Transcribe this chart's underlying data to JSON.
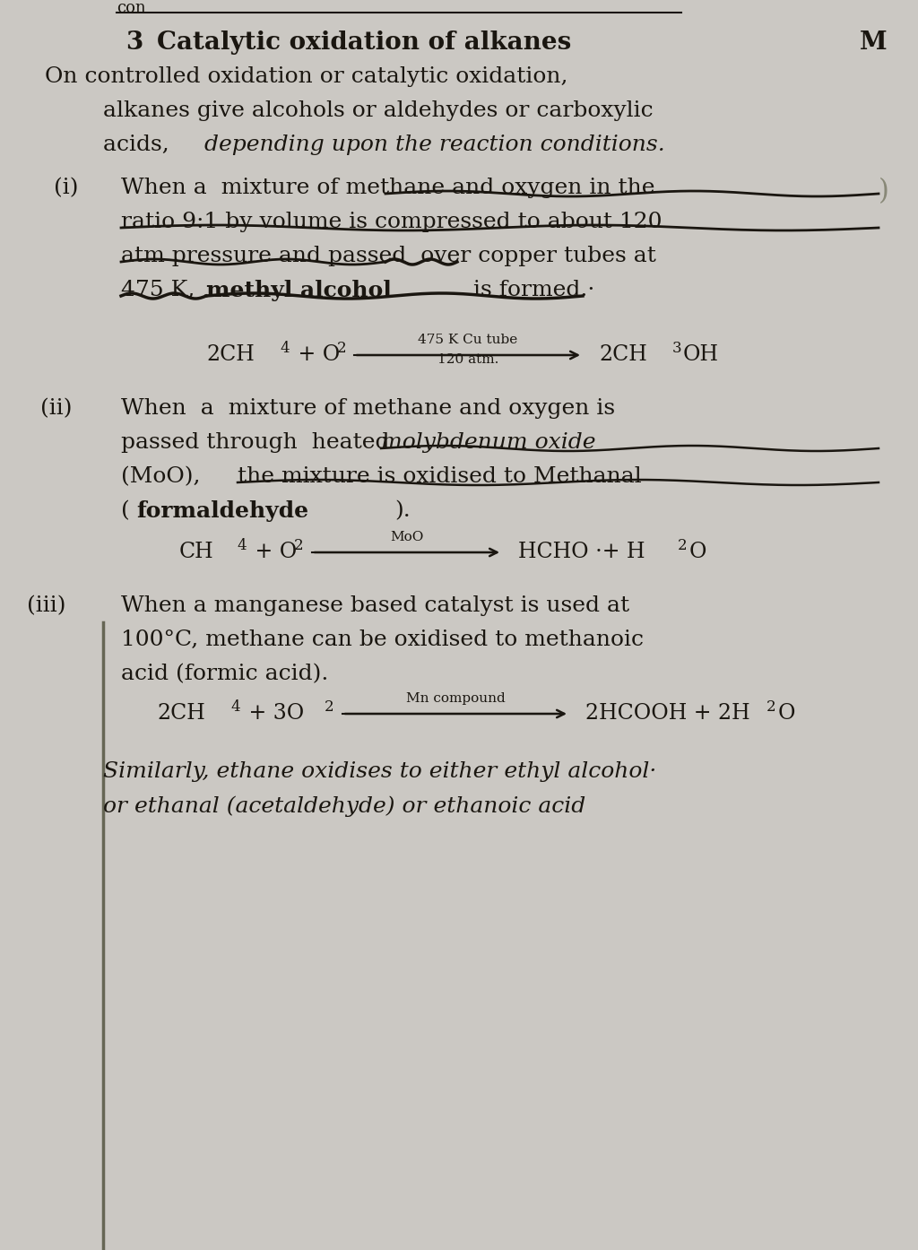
{
  "bg_color": "#cbc8c3",
  "font_color": "#1a1610",
  "line_color": "#1a1610",
  "title": "Catalytic oxidation of alkanes",
  "title_num": "3",
  "right_letter": "M",
  "intro_line1": "On controlled oxidation or catalytic oxidation,",
  "intro_line2": "alkanes give alcohols or aldehydes or carboxylic",
  "intro_line3_normal": "acids, ",
  "intro_line3_italic": "depending upon the reaction conditions.",
  "sec_i_line1": "When a  mixture of methane and oxygen in the",
  "sec_i_line2": "ratio 9:1 by volume is compressed to about 120",
  "sec_i_line3": "atm pressure and passed  over copper tubes at",
  "sec_i_line4a": "475 K, ",
  "sec_i_line4b": "methyl alcohol",
  "sec_i_line4c": " is formed.·",
  "eq1_lhs": "2CH",
  "eq1_lhs_sub": "4",
  "eq1_lhs2": " + O",
  "eq1_lhs2_sub": "2",
  "eq1_above": "475 K Cu tube",
  "eq1_below": "120 atm.",
  "eq1_rhs": "2CH",
  "eq1_rhs_sub": "3",
  "eq1_rhs2": "OH",
  "sec_ii_line1": "When  a  mixture of methane and oxygen is",
  "sec_ii_line2a": "passed through  heated ",
  "sec_ii_line2b": "molybdenum oxide",
  "sec_ii_line3a": "(MoO), ",
  "sec_ii_line3b": "the mixture is oxidised to Methanal",
  "sec_ii_line4a": "(",
  "sec_ii_line4b": "formaldehyde",
  "sec_ii_line4c": ").",
  "eq2_lhs": "CH",
  "eq2_lhs_sub": "4",
  "eq2_lhs2": " + O",
  "eq2_lhs2_sub": "2",
  "eq2_above": "MoO",
  "eq2_rhs": "HCHO ·+ H",
  "eq2_rhs_sub": "2",
  "eq2_rhs2": "O",
  "sec_iii_line1": "When a manganese based catalyst is used at",
  "sec_iii_line2": "100°C, methane can be oxidised to methanoic",
  "sec_iii_line3": "acid (formic acid).",
  "eq3_lhs": "2CH",
  "eq3_lhs_sub": "4",
  "eq3_lhs2": " + 3O",
  "eq3_lhs2_sub": "2",
  "eq3_above": "Mn compound",
  "eq3_rhs": "2HCOOH + 2H",
  "eq3_rhs_sub": "2",
  "eq3_rhs2": "O",
  "final_line1": "Similarly, ethane oxidises to either ethyl alcohol·",
  "final_line2": "or ethanal (acetaldehyde) or ethanoic acid",
  "font_size_title": 20,
  "font_size_body": 18,
  "font_size_eq": 17,
  "font_size_sub": 12,
  "font_size_small": 11
}
